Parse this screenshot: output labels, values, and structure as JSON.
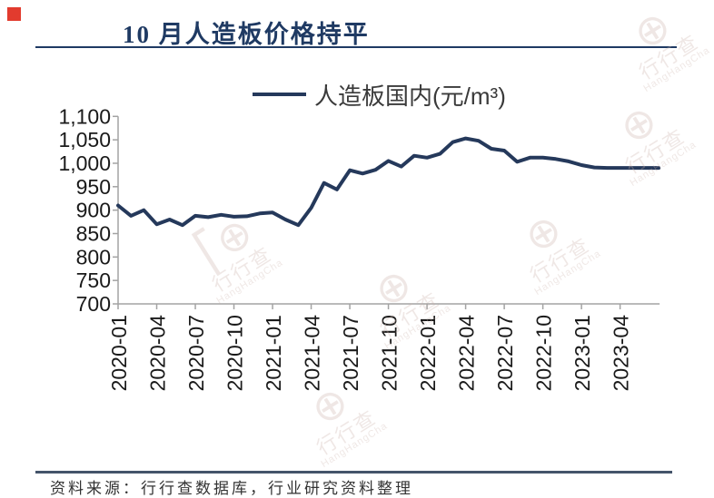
{
  "page": {
    "title": "10 月人造板价格持平",
    "accent_color": "#1f3a63",
    "red_marker_color": "#e23b2e",
    "bottom_source_text": "资料来源：行行查数据库，行业研究资料整理",
    "watermark_text": "行行查",
    "watermark_subtext": "HangHangCha"
  },
  "chart_data": {
    "type": "line",
    "title": "",
    "legend_position": "top",
    "grid": false,
    "axis_color": "#a3a3a3",
    "label_color": "#1a1a1a",
    "ylim": [
      700,
      1100
    ],
    "ytick_step": 50,
    "ytick_labels": [
      "700",
      "750",
      "800",
      "850",
      "900",
      "950",
      "1,000",
      "1,050",
      "1,100"
    ],
    "xtick_every": 3,
    "xtick_labels": [
      "2020-01",
      "2020-04",
      "2020-07",
      "2020-10",
      "2021-01",
      "2021-04",
      "2021-07",
      "2021-10",
      "2022-01",
      "2022-04",
      "2022-07",
      "2022-10",
      "2023-01",
      "2023-04"
    ],
    "x": [
      "2020-01",
      "2020-02",
      "2020-03",
      "2020-04",
      "2020-05",
      "2020-06",
      "2020-07",
      "2020-08",
      "2020-09",
      "2020-10",
      "2020-11",
      "2020-12",
      "2021-01",
      "2021-02",
      "2021-03",
      "2021-04",
      "2021-05",
      "2021-06",
      "2021-07",
      "2021-08",
      "2021-09",
      "2021-10",
      "2021-11",
      "2021-12",
      "2022-01",
      "2022-02",
      "2022-03",
      "2022-04",
      "2022-05",
      "2022-06",
      "2022-07",
      "2022-08",
      "2022-09",
      "2022-10",
      "2022-11",
      "2022-12",
      "2023-01",
      "2023-02",
      "2023-03",
      "2023-04",
      "2023-05",
      "2023-06",
      "2023-07"
    ],
    "series": [
      {
        "name": "人造板国内(元/m³)",
        "color": "#25395b",
        "values": [
          910,
          888,
          900,
          870,
          880,
          868,
          888,
          885,
          890,
          886,
          887,
          893,
          895,
          880,
          868,
          905,
          958,
          944,
          985,
          978,
          986,
          1005,
          993,
          1016,
          1012,
          1020,
          1045,
          1053,
          1048,
          1031,
          1027,
          1003,
          1012,
          1012,
          1009,
          1004,
          996,
          991,
          990,
          990,
          990,
          990,
          990
        ]
      }
    ]
  }
}
